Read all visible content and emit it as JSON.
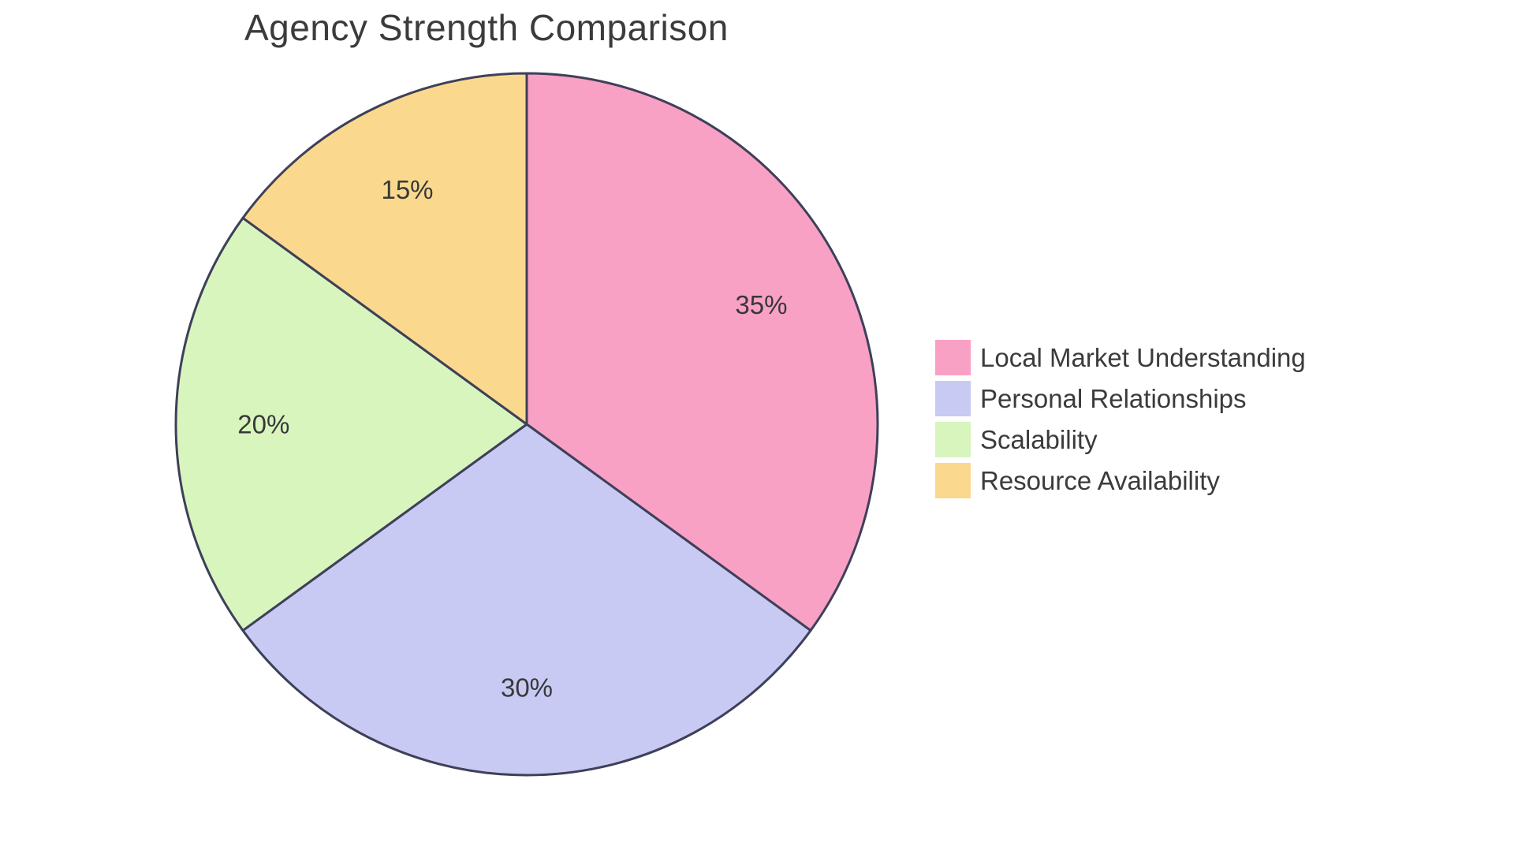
{
  "chart_data": {
    "type": "pie",
    "title": "Agency Strength Comparison",
    "categories": [
      "Local Market Understanding",
      "Personal Relationships",
      "Scalability",
      "Resource Availability"
    ],
    "values": [
      35,
      30,
      20,
      15
    ],
    "slice_labels": [
      "35%",
      "30%",
      "20%",
      "15%"
    ],
    "value_unit": "%",
    "colors": [
      "#F9A0C5",
      "#C8CAF4",
      "#D8F5BE",
      "#FAD98E"
    ],
    "slice_border_color": "#3E4059",
    "label_color": "#383838",
    "title_color": "#3B3B3B",
    "background_color": "#FFFFFF",
    "legend_position": "right",
    "start_angle_deg": 0,
    "direction": "clockwise",
    "grid": false
  }
}
